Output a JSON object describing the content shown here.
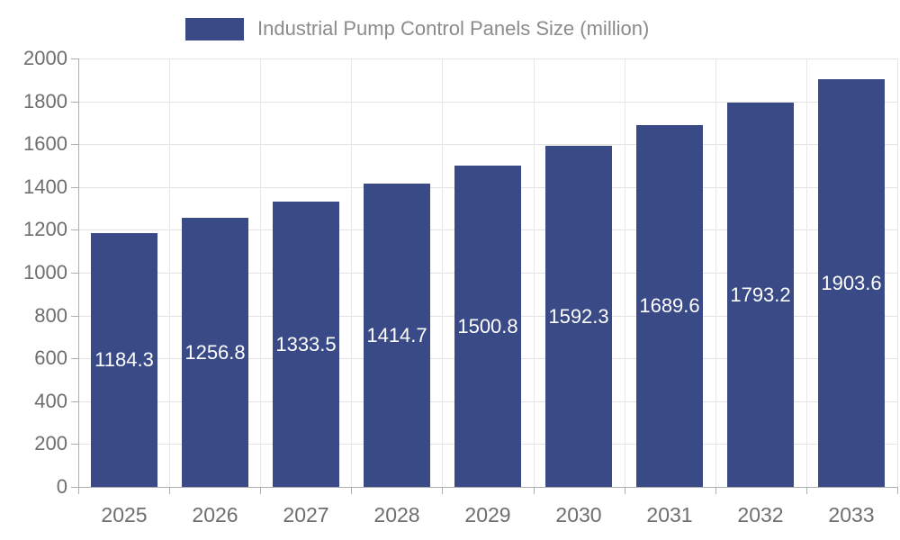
{
  "legend": {
    "label": "Industrial Pump Control Panels Size (million)"
  },
  "chart_data": {
    "type": "bar",
    "title": "Industrial Pump Control Panels Size (million)",
    "categories": [
      "2025",
      "2026",
      "2027",
      "2028",
      "2029",
      "2030",
      "2031",
      "2032",
      "2033"
    ],
    "values": [
      1184.3,
      1256.8,
      1333.5,
      1414.7,
      1500.8,
      1592.3,
      1689.6,
      1793.2,
      1903.6
    ],
    "value_labels": [
      "1184.3",
      "1256.8",
      "1333.5",
      "1414.7",
      "1500.8",
      "1592.3",
      "1689.6",
      "1793.2",
      "1903.6"
    ],
    "xlabel": "",
    "ylabel": "",
    "ylim": [
      0,
      2000
    ],
    "yticks": [
      0,
      200,
      400,
      600,
      800,
      1000,
      1200,
      1400,
      1600,
      1800,
      2000
    ],
    "grid": true,
    "legend_position": "top",
    "colors": {
      "bar": "#394a86",
      "value_label": "#ffffff",
      "grid_h": "#e3e3e3",
      "grid_v": "#e7e7e7",
      "axis": "#adadad",
      "tick_label": "#6e6e6e",
      "legend_text": "#8b8b8b",
      "background": "#ffffff"
    }
  }
}
